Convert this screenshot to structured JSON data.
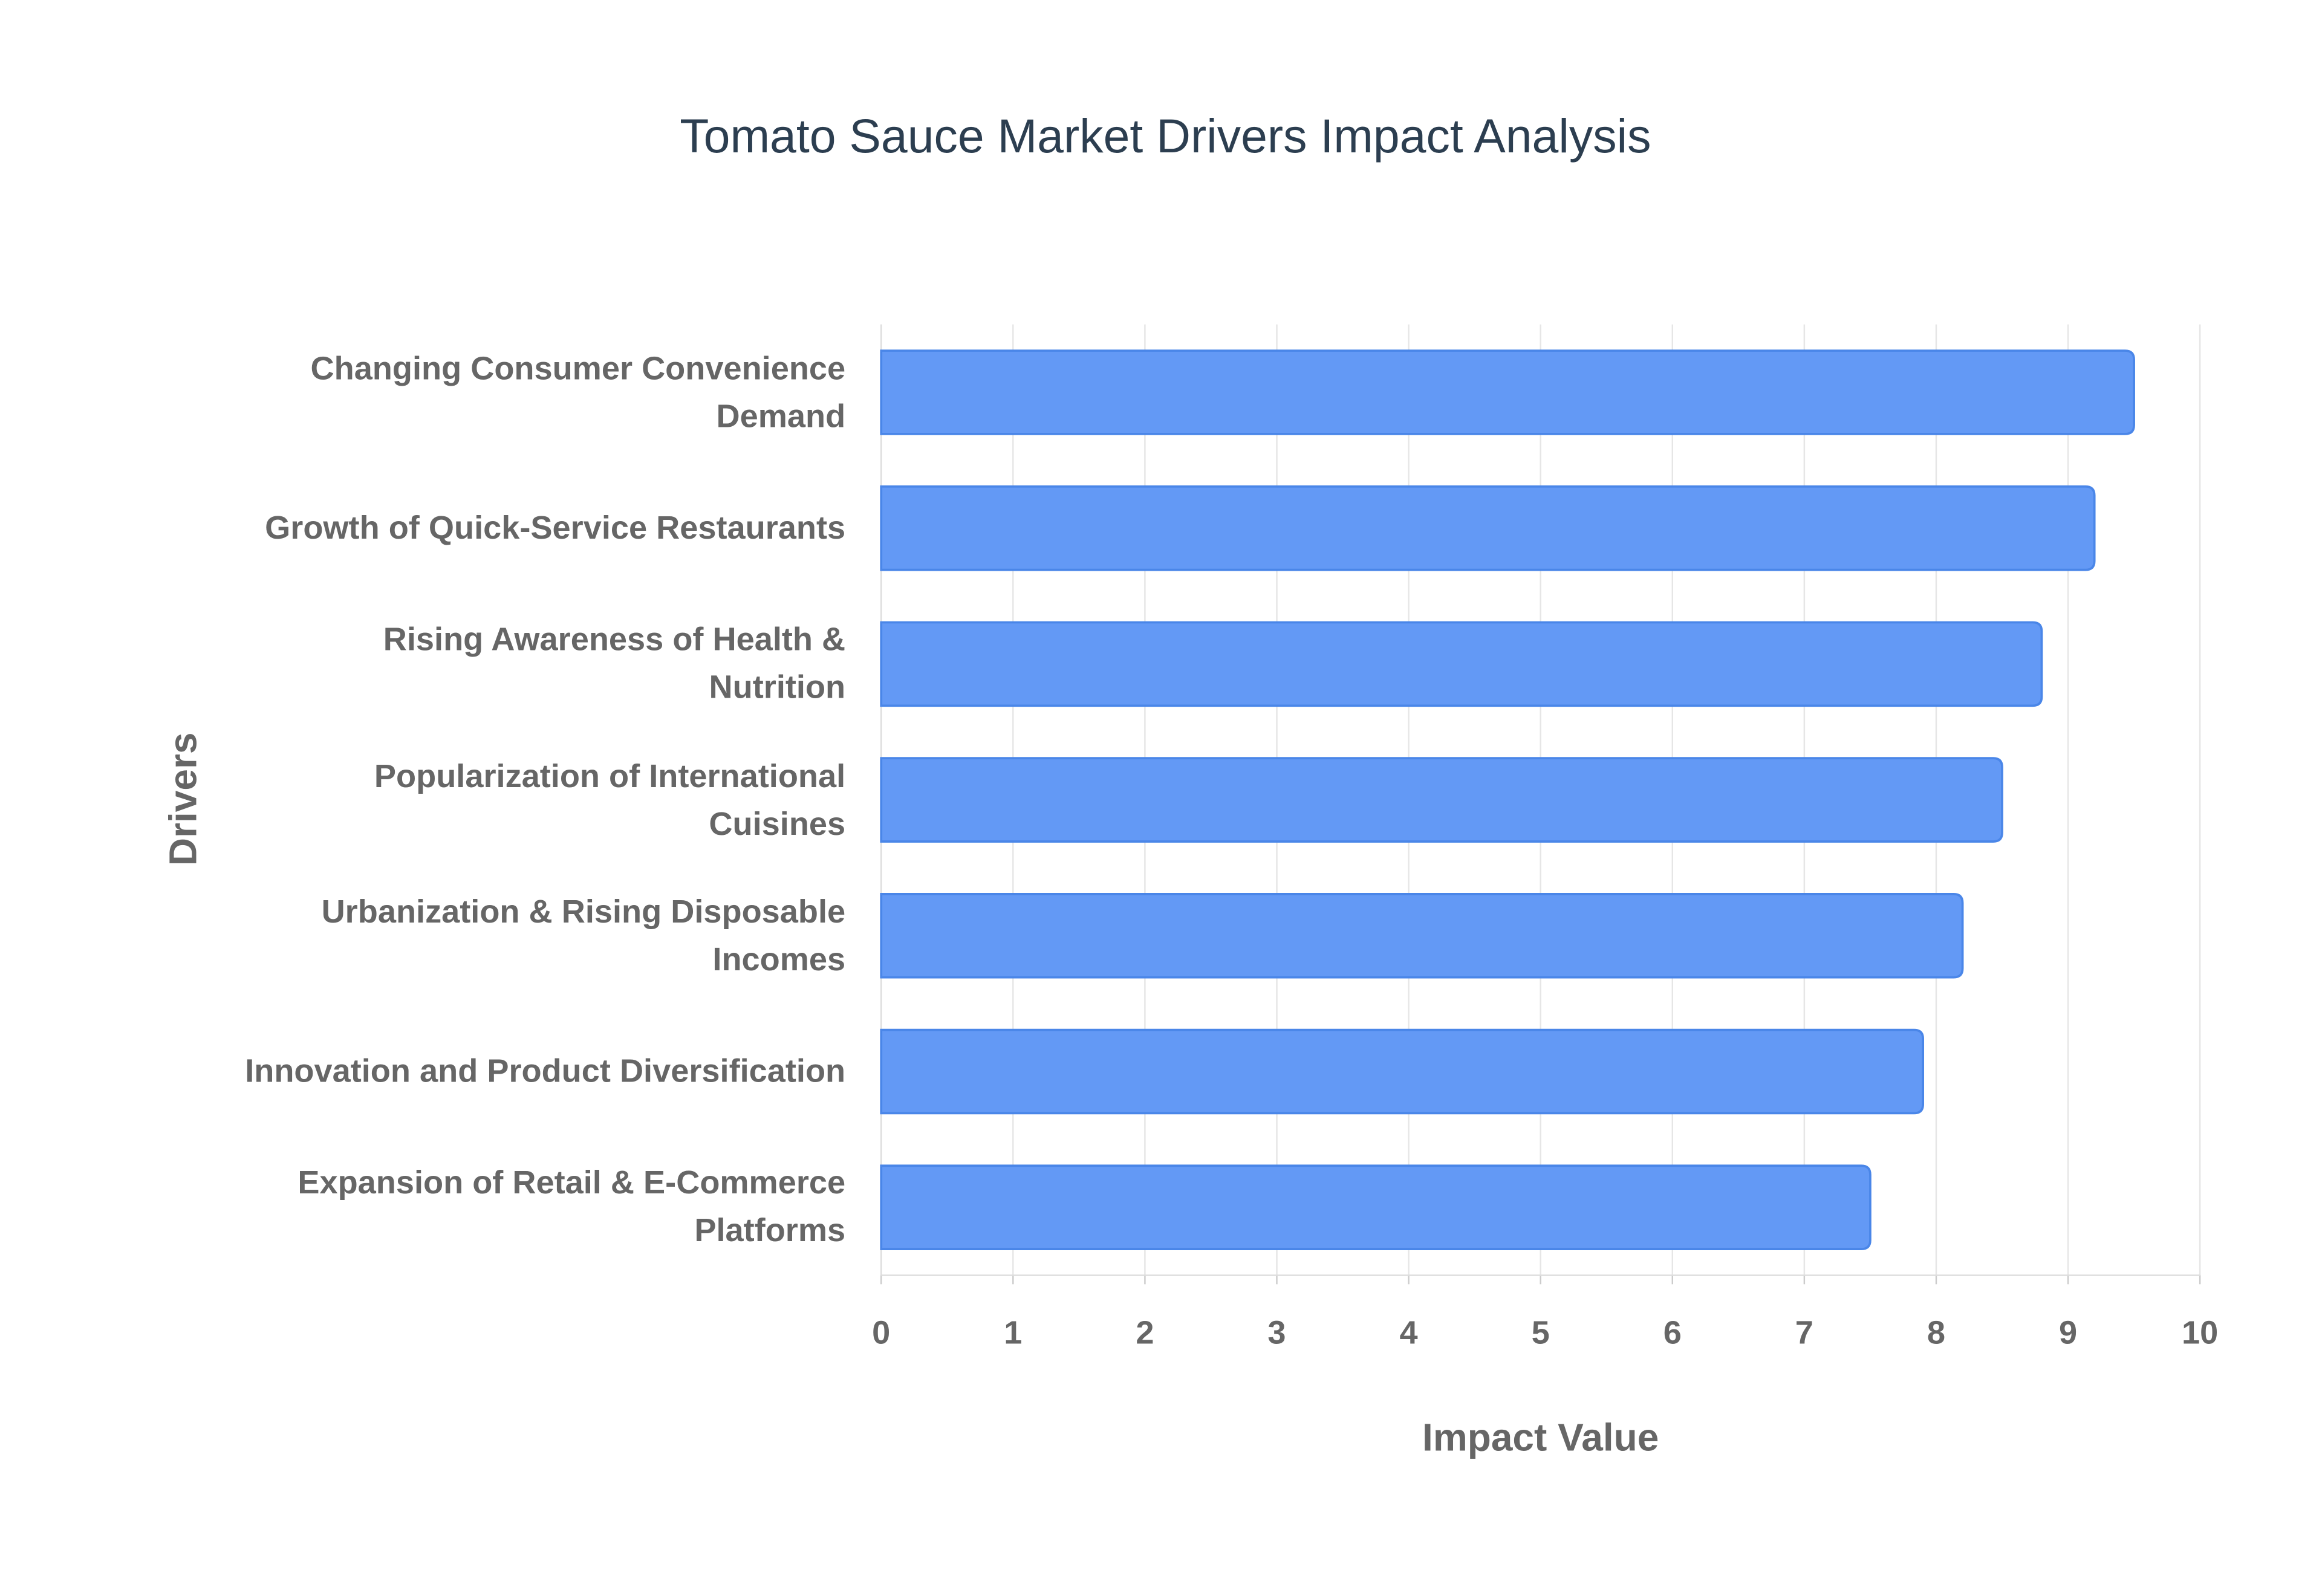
{
  "chart_data": {
    "type": "bar",
    "orientation": "horizontal",
    "title": "Tomato Sauce Market Drivers Impact Analysis",
    "x_label": "Impact Value",
    "y_label": "Drivers",
    "categories": [
      "Changing Consumer Convenience Demand",
      "Growth of Quick-Service Restaurants",
      "Rising Awareness of Health & Nutrition",
      "Popularization of International Cuisines",
      "Urbanization & Rising Disposable Incomes",
      "Innovation and Product Diversification",
      "Expansion of Retail & E-Commerce Platforms"
    ],
    "values": [
      9.5,
      9.2,
      8.8,
      8.5,
      8.2,
      7.9,
      7.5
    ],
    "color": "#6399f5",
    "xlim": [
      0,
      10
    ],
    "xticks": [
      0,
      1,
      2,
      3,
      4,
      5,
      6,
      7,
      8,
      9,
      10
    ],
    "grid": true
  }
}
